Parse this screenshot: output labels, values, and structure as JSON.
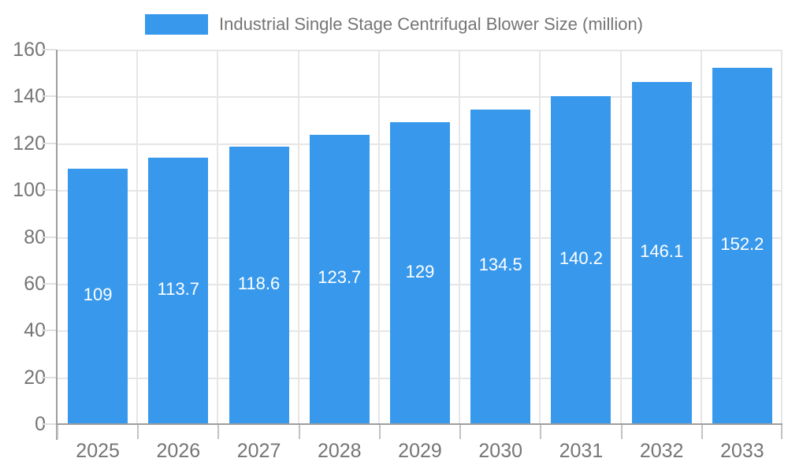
{
  "chart_data": {
    "type": "bar",
    "title": "Industrial Single Stage Centrifugal Blower Size (million)",
    "legend": [
      {
        "label": "Industrial Single Stage Centrifugal Blower Size (million)"
      }
    ],
    "legend_position": "top",
    "categories": [
      "2025",
      "2026",
      "2027",
      "2028",
      "2029",
      "2030",
      "2031",
      "2032",
      "2033"
    ],
    "series": [
      {
        "name": "Industrial Single Stage Centrifugal Blower Size (million)",
        "values": [
          109,
          113.7,
          118.6,
          123.7,
          129,
          134.5,
          140.2,
          146.1,
          152.2
        ]
      }
    ],
    "value_labels": [
      "109",
      "113.7",
      "118.6",
      "123.7",
      "129",
      "134.5",
      "140.2",
      "146.1",
      "152.2"
    ],
    "xlabel": "",
    "ylabel": "",
    "ylim": [
      0,
      160
    ],
    "ytick_step": 20,
    "ytick_labels": [
      "0",
      "20",
      "40",
      "60",
      "80",
      "100",
      "120",
      "140",
      "160"
    ],
    "grid": true,
    "colors": {
      "bar": "#3899ec",
      "axis": "#9e9e9e",
      "gridline": "#e6e6e6",
      "tick_text": "#757575",
      "legend_text": "#757575",
      "value_text": "#ffffff",
      "background": "#ffffff"
    }
  }
}
